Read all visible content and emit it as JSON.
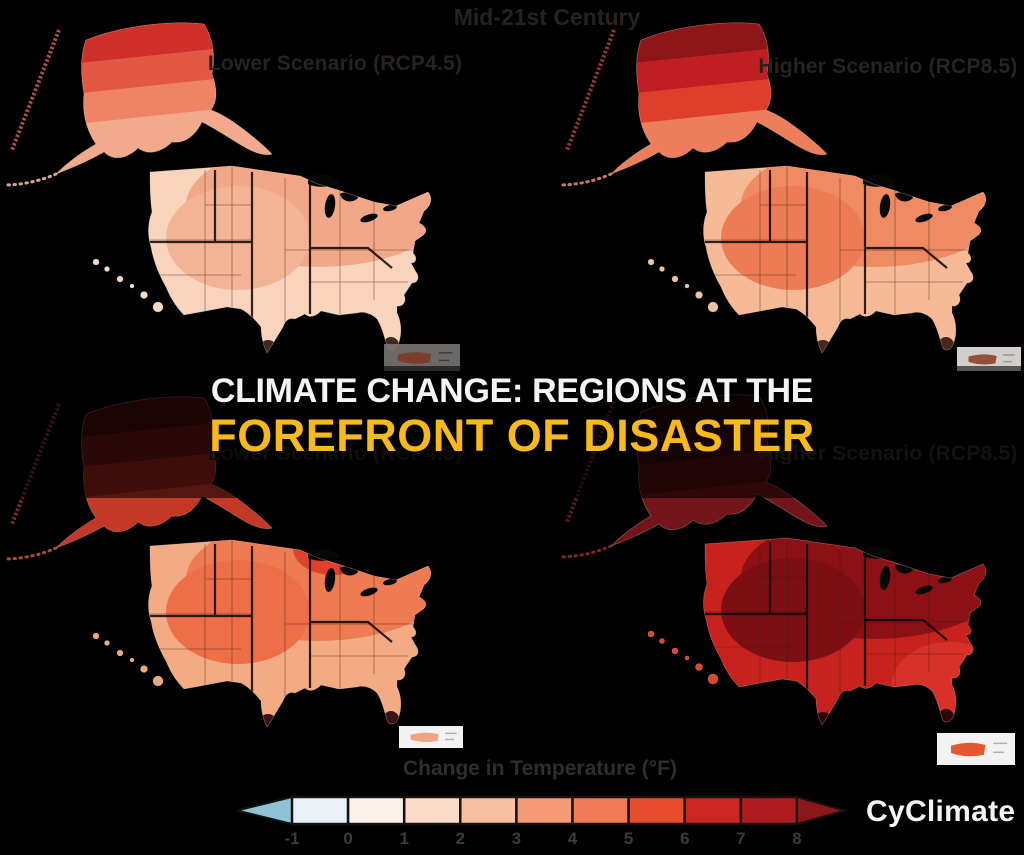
{
  "page": {
    "background": "#000000"
  },
  "header": {
    "row_title": "Mid-21st Century",
    "row_title_color": "#2a211f"
  },
  "maps": [
    {
      "name": "mid-century-lower",
      "label": "Lower Scenario (RCP4.5)",
      "label_color": "#29221f",
      "alaska_bands": [
        "#cf302a",
        "#e25843",
        "#ee8465",
        "#f3a98b"
      ],
      "zones": {
        "base": "#f8d4bc",
        "north": "#f2a888",
        "inland": "#f3b395",
        "tip": "#3f2a22"
      },
      "hawaii": "#f2ddca",
      "dateline": "#bb5853",
      "islands": "#d9a296",
      "inset": {
        "bg": "rgba(122,120,118,0.88)",
        "land": "#7e3b2f",
        "marks": "#3c3c3c"
      }
    },
    {
      "name": "mid-century-higher",
      "label": "Higher Scenario (RCP8.5)",
      "label_color": "#29221f",
      "alaska_bands": [
        "#8e1518",
        "#bf1f22",
        "#dd3f2b",
        "#ee7e5b"
      ],
      "zones": {
        "base": "#f6ba97",
        "north": "#f08a62",
        "inland": "#ed7c55",
        "tip": "#48261e"
      },
      "hawaii": "#eec3a0",
      "dateline": "#a33c38",
      "islands": "#c4766a",
      "inset": {
        "bg": "rgba(228,224,220,0.92)",
        "land": "#96503a",
        "marks": "#9a9a9a"
      }
    },
    {
      "name": "late-century-lower",
      "label": "Lower Scenario (RCP4.5)",
      "label_color": "#241e1c",
      "alaska_bands": [
        "#430b0e",
        "#641114",
        "#952019",
        "#c53726"
      ],
      "zones": {
        "base": "#f4ab84",
        "north": "#ee7b51",
        "inland": "#ec6f47",
        "hotspot": "#df412a",
        "tip": "#3a1410"
      },
      "hawaii": "#f0a87e",
      "dateline": "#8c2f2b",
      "islands": "#a34a3e",
      "inset": {
        "bg": "rgba(255,255,255,0.95)",
        "land": "#f0a585",
        "marks": "#b0b0b0"
      }
    },
    {
      "name": "late-century-higher",
      "label": "Higher Scenario (RCP8.5)",
      "label_color": "#342a26",
      "alaska_bands": [
        "#1f0506",
        "#360a0c",
        "#500e12",
        "#73151a"
      ],
      "zones": {
        "base": "#c8221f",
        "north": "#8c1116",
        "inland": "#7c0f13",
        "se": "#d83129",
        "tip": "#2f0608"
      },
      "hawaii": "#df452b",
      "dateline": "#6e1f1e",
      "islands": "#7a2a24",
      "inset": {
        "bg": "rgba(255,255,255,0.95)",
        "land": "#e4572f",
        "marks": "#b0b0b0"
      }
    }
  ],
  "headline": {
    "line1": "CLIMATE CHANGE: REGIONS AT THE",
    "line1_color": "#f4f4f4",
    "line2": "FOREFRONT OF DISASTER",
    "line2_color": "#f7ba1a"
  },
  "legend": {
    "title": "Change in Temperature (°F)",
    "title_color": "#322c2a",
    "ticks": [
      "-1",
      "0",
      "1",
      "2",
      "3",
      "4",
      "5",
      "6",
      "7",
      "8"
    ],
    "tick_color": "#403a37",
    "segments": [
      "#e9f0f6",
      "#fbf2ea",
      "#fadcc9",
      "#f8c0a3",
      "#f49a76",
      "#f07c57",
      "#e84e2e",
      "#ce2522",
      "#ae1c20"
    ],
    "arrow_left": "#8fc2d6",
    "arrow_right": "#8c171b",
    "outline": "#17120f"
  },
  "branding": {
    "logo": "CyClimate",
    "color": "#f4f4f4"
  }
}
